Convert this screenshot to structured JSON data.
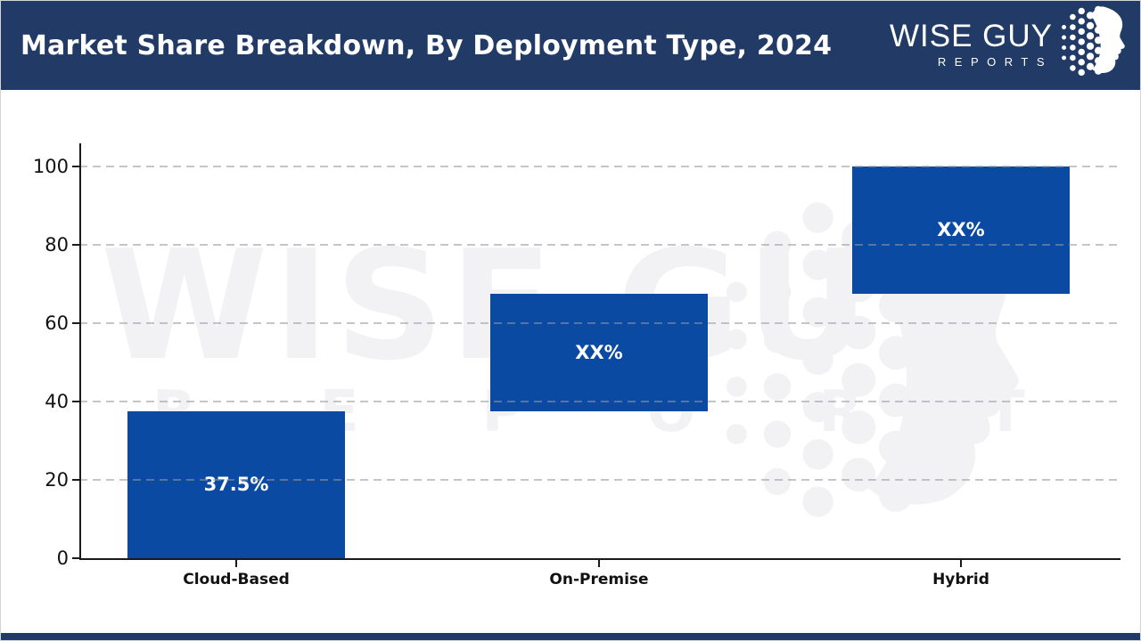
{
  "header": {
    "title": "Market Share Breakdown, By Deployment Type, 2024",
    "logo": {
      "wordmark": "WISE GUY",
      "subtext": "REPORTS"
    }
  },
  "watermark": {
    "wordmark": "WISE GUY",
    "subtext": "R E P O R T S"
  },
  "chart_data": {
    "type": "bar",
    "subtype": "floating-waterfall",
    "title": "Market Share Breakdown, By Deployment Type, 2024",
    "categories": [
      "Cloud-Based",
      "On-Premise",
      "Hybrid"
    ],
    "segments": [
      {
        "category": "Cloud-Based",
        "start": 0,
        "end": 37.5,
        "label": "37.5%"
      },
      {
        "category": "On-Premise",
        "start": 37.5,
        "end": 67.5,
        "label": "XX%"
      },
      {
        "category": "Hybrid",
        "start": 67.5,
        "end": 100,
        "label": "XX%"
      }
    ],
    "yticks": [
      0,
      20,
      40,
      60,
      80,
      100
    ],
    "ylim": [
      0,
      105
    ],
    "xlabel": "",
    "ylabel": "",
    "grid": "horizontal-dashed",
    "legend": "none",
    "bar_color": "#0B4AA2",
    "bar_label_color": "#FFFFFF"
  },
  "colors": {
    "header_bg": "#213A66",
    "footer_bg": "#213A66",
    "bar": "#0B4AA2",
    "gridline": "#D9D9D9",
    "watermark": "#F2F2F4",
    "axis": "#1A1A1A"
  }
}
